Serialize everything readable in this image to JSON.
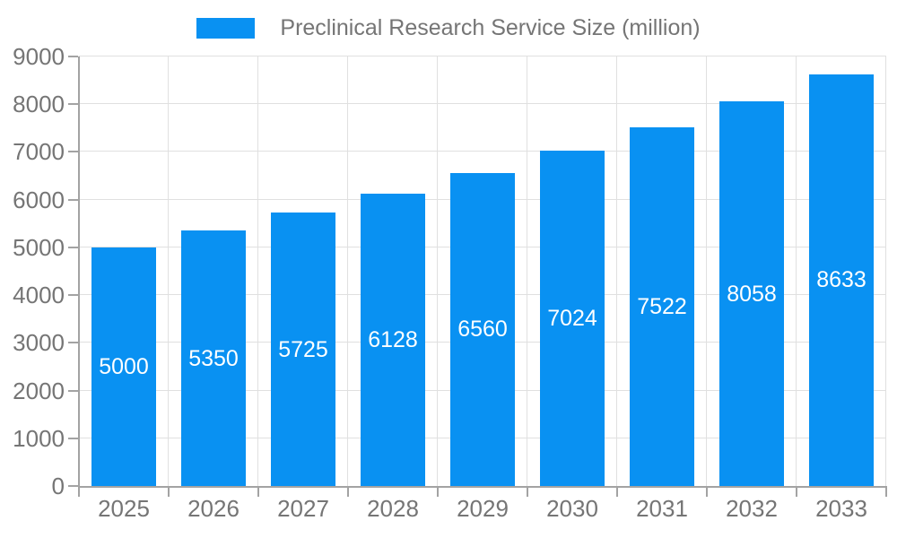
{
  "chart_data": {
    "type": "bar",
    "title": "Preclinical Research Service Size (million)",
    "categories": [
      "2025",
      "2026",
      "2027",
      "2028",
      "2029",
      "2030",
      "2031",
      "2032",
      "2033"
    ],
    "values": [
      5000,
      5350,
      5725,
      6128,
      6560,
      7024,
      7522,
      8058,
      8633
    ],
    "xlabel": "",
    "ylabel": "",
    "ylim": [
      0,
      9000
    ],
    "yticks": [
      0,
      1000,
      2000,
      3000,
      4000,
      5000,
      6000,
      7000,
      8000,
      9000
    ],
    "grid": true,
    "legend_position": "top-center",
    "bar_labels_inside": true,
    "colors": {
      "bar": "#0991f2",
      "bar_label": "#ffffff",
      "axis_text": "#757575",
      "axis_line": "#a3a3a3",
      "grid_line": "#e0e0e0",
      "background": "#ffffff"
    }
  }
}
